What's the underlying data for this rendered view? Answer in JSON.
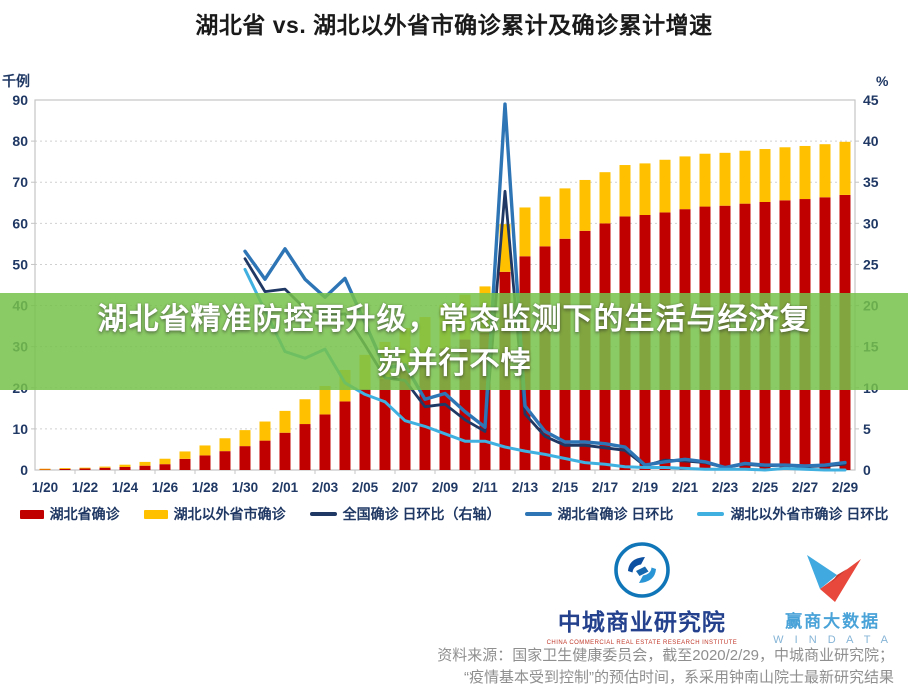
{
  "title": "湖北省 vs. 湖北以外省市确诊累计及确诊累计增速",
  "banner": {
    "line1": "湖北省精准防控再升级，常态监测下的生活与经济复",
    "line2": "苏并行不悖"
  },
  "colors": {
    "hubei_bar": "#c00000",
    "non_hubei_bar": "#ffc000",
    "national_line": "#1f3864",
    "hubei_line": "#2e75b6",
    "non_hubei_line": "#3fb0e0",
    "axis_text": "#1f3864",
    "grid": "#d0d0d0",
    "border": "#c4c4c4",
    "banner_bg": "#77c24a",
    "source_text": "#8f8f8f"
  },
  "chart_data": {
    "type": "bar+line combo (stacked bars left axis, growth-rate lines right axis)",
    "x": [
      "1/20",
      "1/21",
      "1/22",
      "1/23",
      "1/24",
      "1/25",
      "1/26",
      "1/27",
      "1/28",
      "1/29",
      "1/30",
      "1/31",
      "2/01",
      "2/02",
      "2/03",
      "2/04",
      "2/05",
      "2/06",
      "2/07",
      "2/08",
      "2/09",
      "2/10",
      "2/11",
      "2/12",
      "2/13",
      "2/14",
      "2/15",
      "2/16",
      "2/17",
      "2/18",
      "2/19",
      "2/20",
      "2/21",
      "2/22",
      "2/23",
      "2/24",
      "2/25",
      "2/26",
      "2/27",
      "2/28",
      "2/29"
    ],
    "x_tick_every": 2,
    "left_axis": {
      "label": "千例",
      "min": 0,
      "max": 90,
      "step": 10
    },
    "right_axis": {
      "label": "%",
      "min": 0,
      "max": 45,
      "step": 5
    },
    "grid": "dotted horizontal",
    "legend_position": "bottom",
    "series": [
      {
        "name": "湖北省确诊",
        "type": "bar",
        "stack": 1,
        "axis": "left",
        "color_key": "hubei_bar",
        "values": [
          0.27,
          0.38,
          0.44,
          0.55,
          0.73,
          1.05,
          1.42,
          2.71,
          3.55,
          4.59,
          5.81,
          7.15,
          9.07,
          11.18,
          13.52,
          16.68,
          19.67,
          22.11,
          24.95,
          27.1,
          29.63,
          31.73,
          33.37,
          48.21,
          51.99,
          54.41,
          56.25,
          58.18,
          59.99,
          61.68,
          62.03,
          62.66,
          63.45,
          64.08,
          64.29,
          64.79,
          65.19,
          65.6,
          65.91,
          66.34,
          66.91
        ]
      },
      {
        "name": "湖北以外省市确诊",
        "type": "bar",
        "stack": 1,
        "axis": "left",
        "color_key": "non_hubei_bar",
        "values": [
          0.02,
          0.07,
          0.13,
          0.28,
          0.56,
          0.92,
          1.32,
          1.8,
          2.42,
          3.13,
          3.89,
          4.64,
          5.31,
          6.03,
          6.92,
          7.65,
          8.35,
          9.05,
          9.59,
          10.1,
          10.54,
          10.91,
          11.29,
          11.6,
          11.87,
          12.09,
          12.25,
          12.37,
          12.45,
          12.5,
          12.55,
          12.8,
          12.83,
          12.85,
          12.86,
          12.87,
          12.88,
          12.9,
          12.91,
          12.91,
          12.92
        ]
      },
      {
        "name": "全国确诊 日环比（右轴）",
        "type": "line",
        "axis": "right",
        "color_key": "national_line",
        "width": 2.8,
        "values": [
          null,
          null,
          null,
          null,
          null,
          null,
          null,
          null,
          null,
          null,
          25.7,
          21.7,
          22.0,
          19.6,
          18.8,
          19.0,
          15.2,
          11.2,
          10.9,
          7.7,
          8.0,
          6.1,
          4.7,
          33.9,
          6.8,
          4.1,
          3.0,
          3.0,
          2.7,
          2.4,
          0.5,
          1.2,
          1.1,
          0.9,
          0.3,
          0.7,
          0.5,
          0.6,
          0.4,
          0.5,
          0.7
        ]
      },
      {
        "name": "湖北省确诊 日环比",
        "type": "line",
        "axis": "right",
        "color_key": "hubei_line",
        "width": 3.4,
        "values": [
          null,
          null,
          null,
          null,
          null,
          null,
          null,
          null,
          null,
          null,
          26.6,
          23.2,
          26.9,
          23.2,
          21.0,
          23.3,
          17.9,
          12.4,
          12.8,
          8.6,
          9.3,
          7.1,
          5.2,
          44.5,
          7.8,
          4.7,
          3.4,
          3.4,
          3.2,
          2.8,
          0.6,
          1.0,
          1.3,
          1.0,
          0.3,
          0.8,
          0.6,
          0.6,
          0.5,
          0.6,
          0.9
        ]
      },
      {
        "name": "湖北以外省市确诊 日环比",
        "type": "line",
        "axis": "right",
        "color_key": "non_hubei_line",
        "width": 3.0,
        "values": [
          null,
          null,
          null,
          null,
          null,
          null,
          null,
          null,
          null,
          null,
          24.4,
          19.4,
          14.4,
          13.6,
          14.7,
          10.6,
          9.2,
          8.3,
          6.0,
          5.3,
          4.4,
          3.5,
          3.5,
          2.8,
          2.3,
          1.9,
          1.4,
          0.9,
          0.7,
          0.4,
          0.3,
          0.3,
          0.2,
          0.1,
          0.1,
          0.1,
          0.0,
          0.2,
          0.1,
          0.0,
          0.0
        ]
      }
    ],
    "legend": [
      {
        "label": "湖北省确诊",
        "type": "bar",
        "color_key": "hubei_bar"
      },
      {
        "label": "湖北以外省市确诊",
        "type": "bar",
        "color_key": "non_hubei_bar"
      },
      {
        "label": "全国确诊 日环比（右轴）",
        "type": "line",
        "color_key": "national_line"
      },
      {
        "label": "湖北省确诊 日环比",
        "type": "line",
        "color_key": "hubei_line"
      },
      {
        "label": "湖北以外省市确诊 日环比",
        "type": "line",
        "color_key": "non_hubei_line"
      }
    ]
  },
  "footer": {
    "ccrei": {
      "name": "中城商业研究院",
      "subtitle": "CHINA COMMERCIAL REAL ESTATE RESEARCH INSTITUTE"
    },
    "windata": {
      "name": "赢商大数据",
      "subtitle": "W I N  D A T A"
    },
    "source_line1": "资料来源：国家卫生健康委员会，截至2020/2/29，中城商业研究院；",
    "source_line2": "“疫情基本受到控制”的预估时间，系采用钟南山院士最新研究结果"
  }
}
